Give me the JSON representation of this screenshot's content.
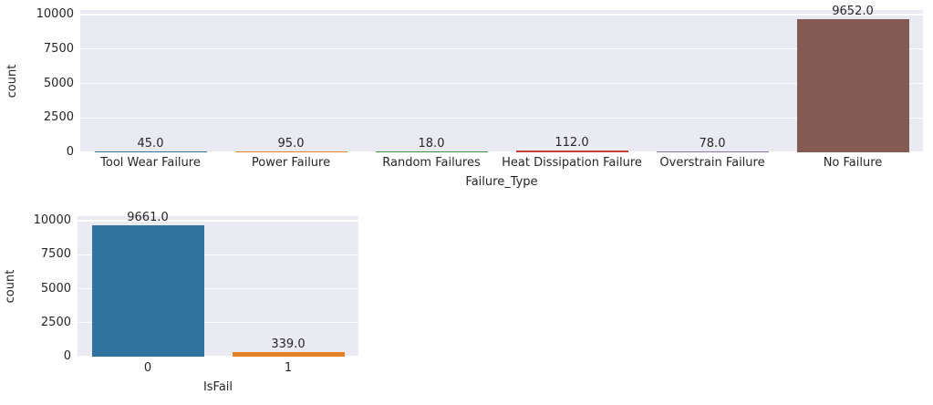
{
  "figure": {
    "background": "#ffffff",
    "plot_background": "#eaeaf2",
    "grid_color": "#ffffff",
    "text_color": "#262626"
  },
  "chart_data": [
    {
      "type": "bar",
      "title": "",
      "categories": [
        "Tool Wear Failure",
        "Power Failure",
        "Random Failures",
        "Heat Dissipation Failure",
        "Overstrain Failure",
        "No Failure"
      ],
      "values": [
        45.0,
        95.0,
        18.0,
        112.0,
        78.0,
        9652.0
      ],
      "bar_labels": [
        "45.0",
        "95.0",
        "18.0",
        "112.0",
        "78.0",
        "9652.0"
      ],
      "bar_colors": [
        "#3274a1",
        "#e1812c",
        "#3a923a",
        "#c03d3e",
        "#9372b2",
        "#845b53"
      ],
      "xlabel": "Failure_Type",
      "ylabel": "count",
      "ytick_labels": [
        "0",
        "2500",
        "5000",
        "7500",
        "10000"
      ],
      "yticks": [
        0,
        2500,
        5000,
        7500,
        10000
      ],
      "ylim": [
        0,
        10000
      ],
      "grid": true,
      "legend": false
    },
    {
      "type": "bar",
      "title": "",
      "categories": [
        "0",
        "1"
      ],
      "values": [
        9661.0,
        339.0
      ],
      "bar_labels": [
        "9661.0",
        "339.0"
      ],
      "bar_colors": [
        "#3274a1",
        "#e1812c"
      ],
      "xlabel": "IsFail",
      "ylabel": "count",
      "ytick_labels": [
        "0",
        "2500",
        "5000",
        "7500",
        "10000"
      ],
      "yticks": [
        0,
        2500,
        5000,
        7500,
        10000
      ],
      "ylim": [
        0,
        10000
      ],
      "grid": true,
      "legend": false
    }
  ]
}
